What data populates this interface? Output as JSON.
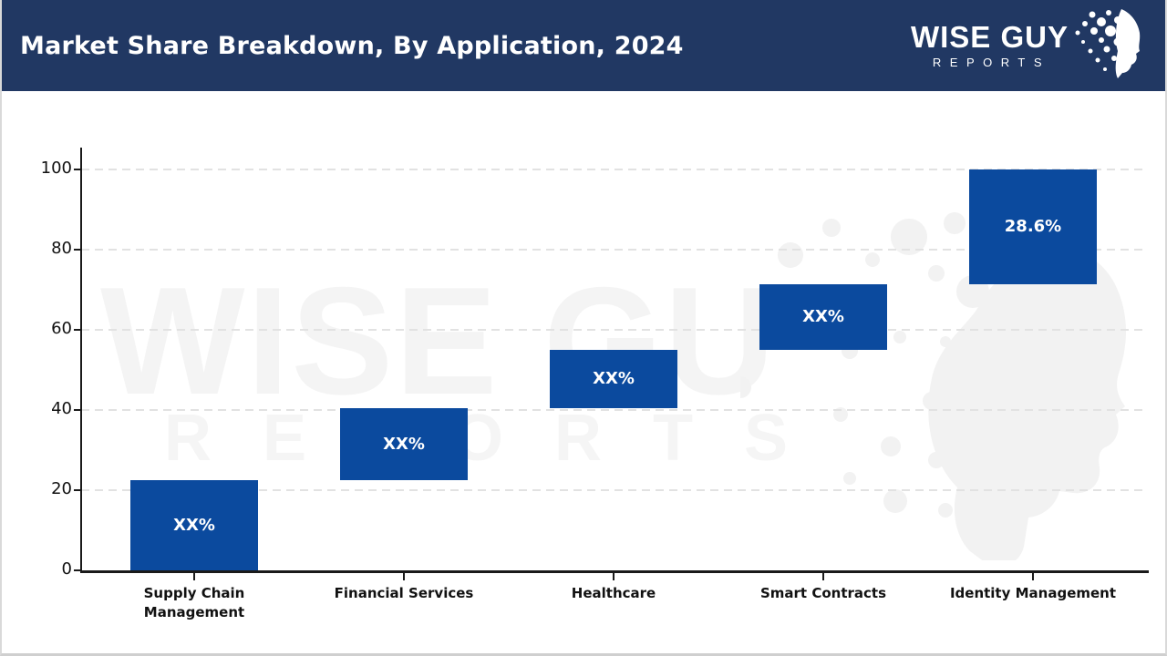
{
  "header": {
    "title": "Market Share Breakdown, By Application, 2024",
    "logo": {
      "line1": "WISE GUY",
      "line2": "REPORTS"
    }
  },
  "watermark": {
    "line1": "WISE GU",
    "line2": "REPORTS"
  },
  "colors": {
    "header_bg": "#213863",
    "bar": "#0b4a9e",
    "grid": "#e2e2e2",
    "axis": "#1a1a1a",
    "watermark": "#f4f4f4",
    "title_text": "#ffffff",
    "bar_label_text": "#ffffff"
  },
  "chart_data": {
    "type": "bar",
    "subtype": "waterfall",
    "title": "Market Share Breakdown, By Application, 2024",
    "xlabel": "",
    "ylabel": "",
    "ylim": [
      0,
      100
    ],
    "yticks": [
      0,
      20,
      40,
      60,
      80,
      100
    ],
    "grid": "horizontal-dashed",
    "legend": "none",
    "categories": [
      "Supply Chain Management",
      "Financial Services",
      "Healthcare",
      "Smart Contracts",
      "Identity Management"
    ],
    "series": [
      {
        "category": "Supply Chain Management",
        "start": 0,
        "end": 22.5,
        "value_shown": "XX%"
      },
      {
        "category": "Financial Services",
        "start": 22.5,
        "end": 40.5,
        "value_shown": "XX%"
      },
      {
        "category": "Healthcare",
        "start": 40.5,
        "end": 55.0,
        "value_shown": "XX%"
      },
      {
        "category": "Smart Contracts",
        "start": 55.0,
        "end": 71.4,
        "value_shown": "XX%"
      },
      {
        "category": "Identity Management",
        "start": 71.4,
        "end": 100.0,
        "value_shown": "28.6%"
      }
    ]
  }
}
